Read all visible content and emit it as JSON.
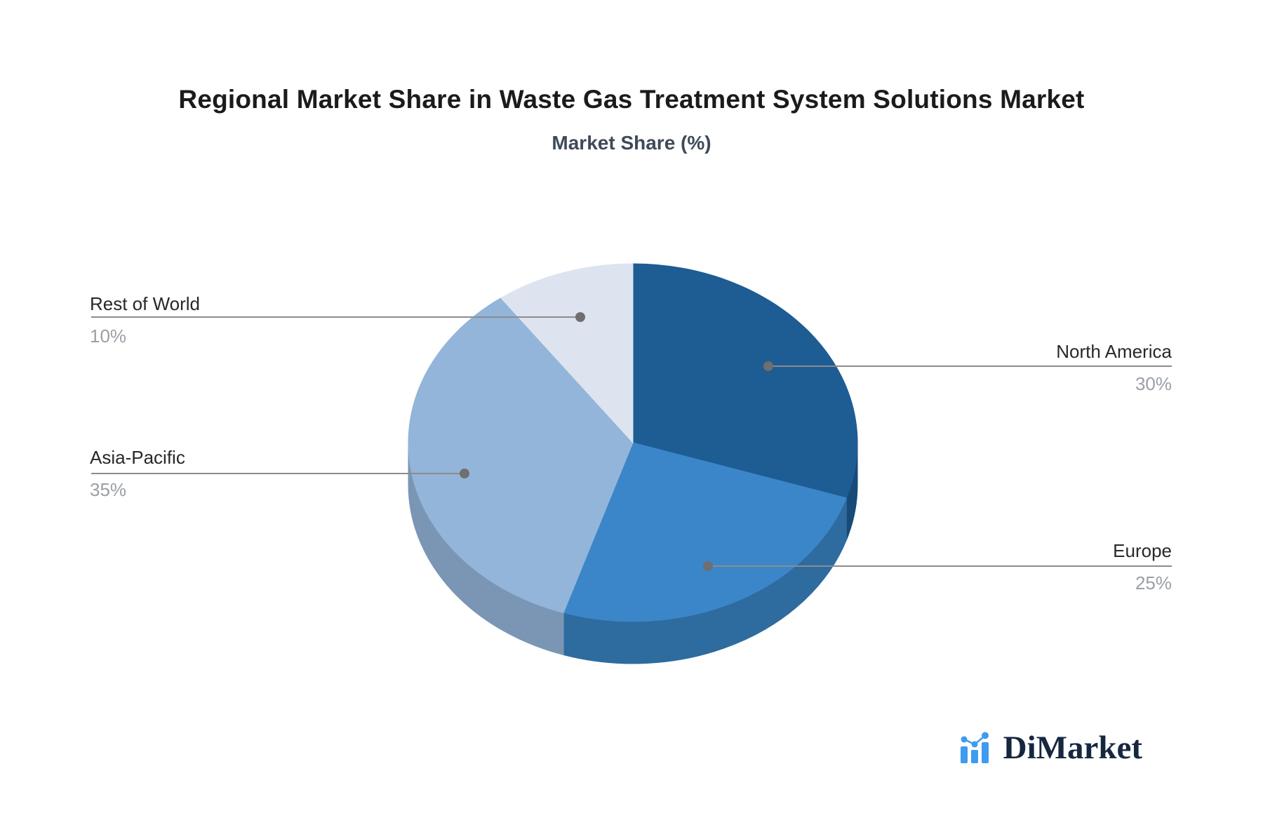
{
  "header": {
    "title": "Regional Market Share in Waste Gas Treatment System Solutions Market",
    "subtitle": "Market Share (%)"
  },
  "chart_data": {
    "type": "pie",
    "title": "Regional Market Share in Waste Gas Treatment System Solutions Market",
    "value_label": "Market Share (%)",
    "effect_3d": true,
    "start_angle": "12-oclock",
    "direction": "clockwise",
    "legend_position": "callout-labels",
    "slices": [
      {
        "label": "North America",
        "value": 30,
        "pct_label": "30%",
        "color": "#1e5c94",
        "side_color": "#174a77"
      },
      {
        "label": "Europe",
        "value": 25,
        "pct_label": "25%",
        "color": "#3a86c8",
        "side_color": "#2e6b9e"
      },
      {
        "label": "Asia-Pacific",
        "value": 35,
        "pct_label": "35%",
        "color": "#93b5da",
        "side_color": "#7b96b4"
      },
      {
        "label": "Rest of World",
        "value": 10,
        "pct_label": "10%",
        "color": "#dde4ef",
        "side_color": "#b2bcca"
      }
    ]
  },
  "logo": {
    "text": "DiMarket",
    "icon": "bar-chart-trend-icon",
    "icon_color": "#3f9bf0",
    "text_color": "#162740"
  },
  "colors": {
    "background": "#ffffff",
    "leader_line": "#8c8c8c",
    "leader_dot": "#6f6f6f",
    "label_text": "#282828",
    "pct_text": "#9aa0a6",
    "title_text": "#1b1b1b",
    "subtitle_text": "#3e4a59"
  }
}
